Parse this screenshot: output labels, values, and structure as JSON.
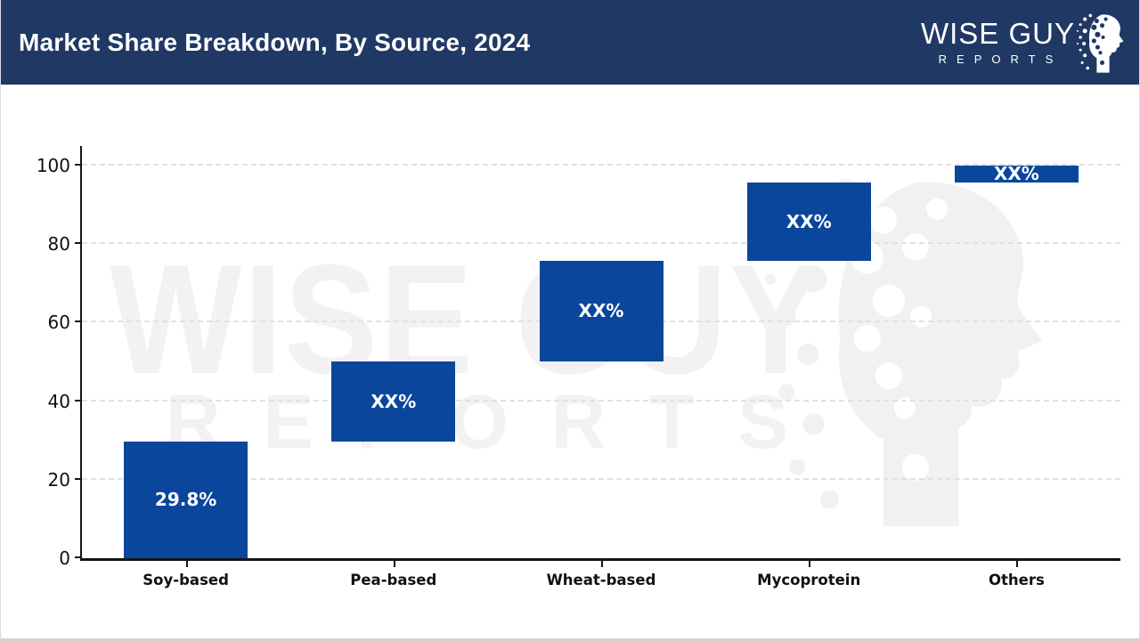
{
  "header": {
    "title": "Market Share Breakdown, By Source, 2024",
    "bg_color": "#203864",
    "logo": {
      "line1": "WISE GUY",
      "line2": "REPORTS"
    }
  },
  "watermark": {
    "line1": "WISE GUY",
    "line2": "REPORTS"
  },
  "chart_data": {
    "type": "bar",
    "subtype": "waterfall",
    "title": "Market Share Breakdown, By Source, 2024",
    "categories": [
      "Soy-based",
      "Pea-based",
      "Wheat-based",
      "Mycoprotein",
      "Others"
    ],
    "segments": [
      {
        "category": "Soy-based",
        "start": 0,
        "end": 29.8,
        "label": "29.8%"
      },
      {
        "category": "Pea-based",
        "start": 29.8,
        "end": 50.2,
        "label": "XX%"
      },
      {
        "category": "Wheat-based",
        "start": 50.2,
        "end": 75.7,
        "label": "XX%"
      },
      {
        "category": "Mycoprotein",
        "start": 75.7,
        "end": 95.8,
        "label": "XX%"
      },
      {
        "category": "Others",
        "start": 95.8,
        "end": 100,
        "label": "XX%"
      }
    ],
    "ylim": [
      0,
      105
    ],
    "yticks": [
      0,
      20,
      40,
      60,
      80,
      100
    ],
    "bar_color": "#0a469b",
    "label_color": "#ffffff",
    "grid": "horizontal dashed",
    "legend": "none"
  }
}
